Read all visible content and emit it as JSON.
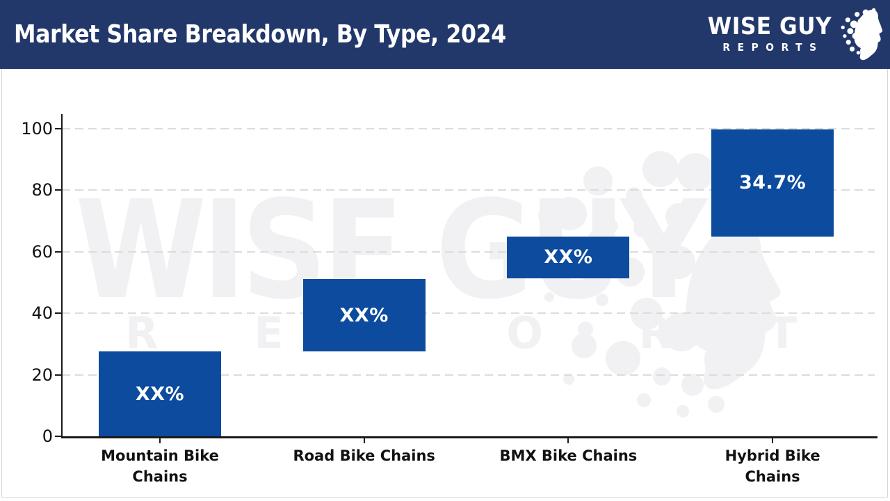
{
  "header": {
    "title": "Market Share Breakdown, By Type, 2024",
    "logo": {
      "line1": "WISE GUY",
      "line2": "REPORTS"
    }
  },
  "watermark": {
    "line1": "WISE GUY",
    "line2": "R E P O R T S"
  },
  "chart_data": {
    "type": "bar",
    "subtype": "floating-waterfall",
    "title": "Market Share Breakdown, By Type, 2024",
    "categories": [
      "Mountain Bike Chains",
      "Road Bike Chains",
      "BMX Bike Chains",
      "Hybrid Bike Chains"
    ],
    "segments": [
      {
        "category": "Mountain Bike Chains",
        "start": 0,
        "end": 27.5,
        "label": "XX%"
      },
      {
        "category": "Road Bike Chains",
        "start": 27.5,
        "end": 51.2,
        "label": "XX%"
      },
      {
        "category": "BMX Bike Chains",
        "start": 51.3,
        "end": 65.0,
        "label": "XX%"
      },
      {
        "category": "Hybrid Bike Chains",
        "start": 65.0,
        "end": 99.7,
        "label": "34.7%"
      }
    ],
    "yticks": [
      0,
      20,
      40,
      60,
      80,
      100
    ],
    "ylim": [
      0,
      100
    ],
    "xlabel": "",
    "ylabel": "",
    "grid": "horizontal-dashed",
    "legend": "none",
    "colors": {
      "bar": "#0C4B9E",
      "bar_label": "#FFFFFF",
      "grid": "#DCDCDC",
      "axis": "#1A1A1A",
      "header_bg": "#22386B",
      "watermark": "#F1F1F4"
    }
  }
}
